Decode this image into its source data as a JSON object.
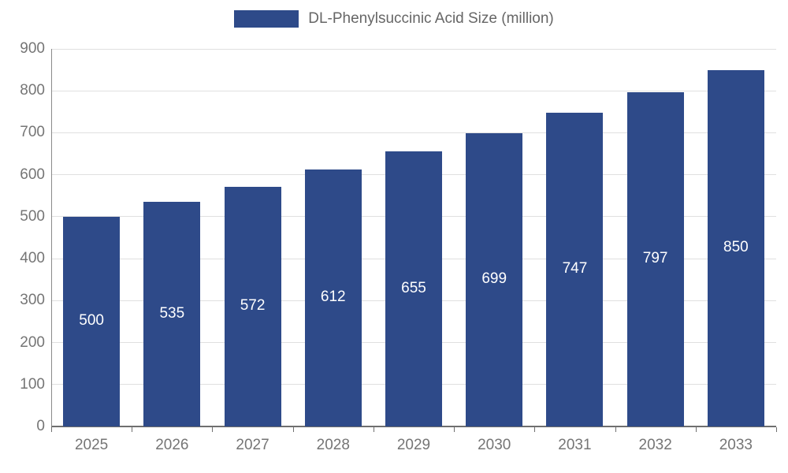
{
  "legend": {
    "label": "DL-Phenylsuccinic Acid Size (million)"
  },
  "chart_data": {
    "type": "bar",
    "title": "DL-Phenylsuccinic Acid Size (million)",
    "categories": [
      "2025",
      "2026",
      "2027",
      "2028",
      "2029",
      "2030",
      "2031",
      "2032",
      "2033"
    ],
    "values": [
      500,
      535,
      572,
      612,
      655,
      699,
      747,
      797,
      850
    ],
    "xlabel": "",
    "ylabel": "",
    "ylim": [
      0,
      900
    ],
    "ytick_step": 100,
    "grid": true,
    "legend_position": "top",
    "bar_color": "#2e4a89",
    "value_label_color": "#ffffff",
    "axis_text_color": "#757575",
    "gridline_color": "#e0e0e0",
    "axis_line_color": "#6f6f6f"
  }
}
